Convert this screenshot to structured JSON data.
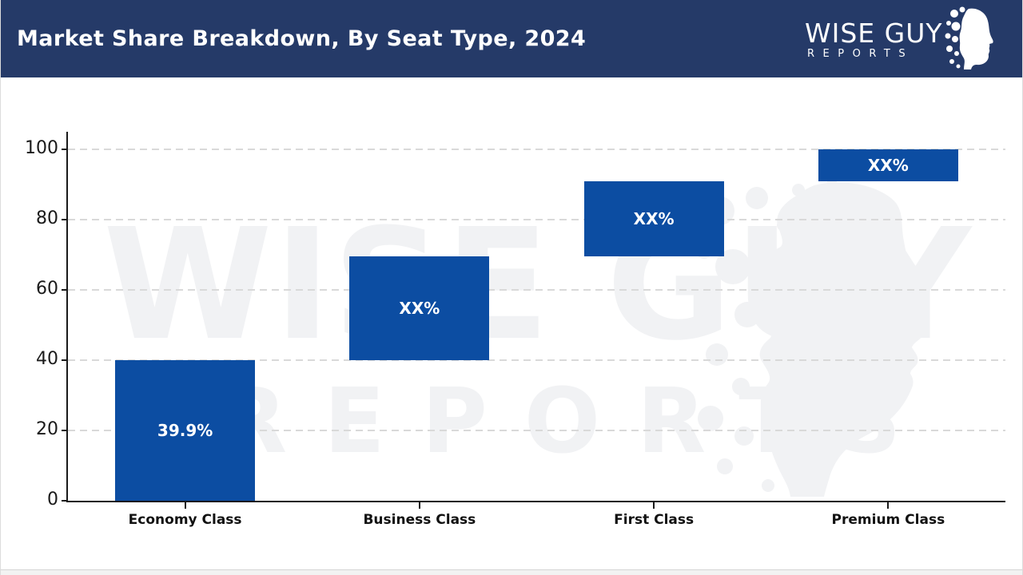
{
  "header": {
    "title": "Market Share Breakdown, By Seat Type, 2024",
    "logo": {
      "line1": "WISE GUY",
      "line2": "REPORTS"
    }
  },
  "watermark": {
    "line1": "WISE GUY",
    "line2": "REPORTS"
  },
  "colors": {
    "header_bg": "#253a68",
    "bar": "#0c4da2",
    "bar_label": "#ffffff",
    "gridline": "#d9d9d9",
    "axis": "#1a1a1a",
    "watermark": "#f1f2f4"
  },
  "chart_data": {
    "type": "bar",
    "subtype": "waterfall",
    "title": "Market Share Breakdown, By Seat Type, 2024",
    "xlabel": "",
    "ylabel": "",
    "categories": [
      "Economy Class",
      "Business Class",
      "First Class",
      "Premium Class"
    ],
    "segments": [
      {
        "category": "Economy Class",
        "start": 0,
        "end": 39.9,
        "label": "39.9%"
      },
      {
        "category": "Business Class",
        "start": 39.9,
        "end": 69.5,
        "label": "XX%"
      },
      {
        "category": "First Class",
        "start": 69.5,
        "end": 90.9,
        "label": "XX%"
      },
      {
        "category": "Premium Class",
        "start": 90.9,
        "end": 100,
        "label": "XX%"
      }
    ],
    "yticks": [
      0,
      20,
      40,
      60,
      80,
      100
    ],
    "ylim": [
      0,
      104
    ],
    "grid": "dashed horizontal",
    "legend": "none"
  }
}
